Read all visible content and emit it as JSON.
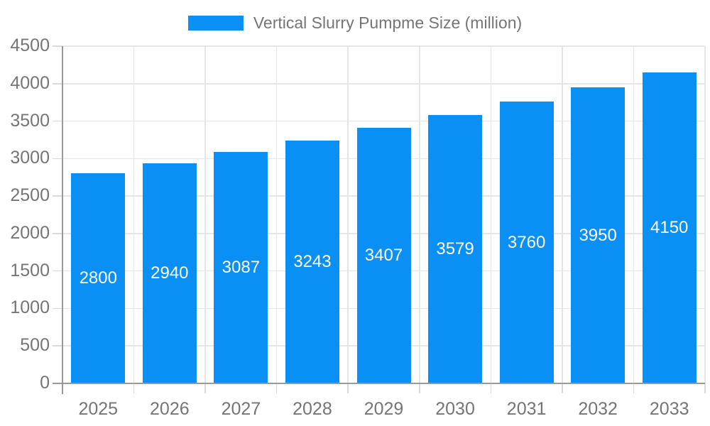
{
  "legend": {
    "label": "Vertical Slurry Pumpme Size (million)"
  },
  "chart_data": {
    "type": "bar",
    "title": "Vertical Slurry Pumpme Size (million)",
    "categories": [
      "2025",
      "2026",
      "2027",
      "2028",
      "2029",
      "2030",
      "2031",
      "2032",
      "2033"
    ],
    "values": [
      2800,
      2940,
      3087,
      3243,
      3407,
      3579,
      3760,
      3950,
      4150
    ],
    "xlabel": "",
    "ylabel": "",
    "ylim": [
      0,
      4500
    ],
    "yticks": [
      0,
      500,
      1000,
      1500,
      2000,
      2500,
      3000,
      3500,
      4000,
      4500
    ],
    "grid": true,
    "legend_position": "top",
    "colors": {
      "bar": "#0A8FF5",
      "value_label": "#FFFFFF",
      "axis_text": "#757575",
      "gridline": "#E6E6E6",
      "tick": "#D9D9D9",
      "axis_line": "#999999",
      "background": "#FFFFFF"
    }
  }
}
